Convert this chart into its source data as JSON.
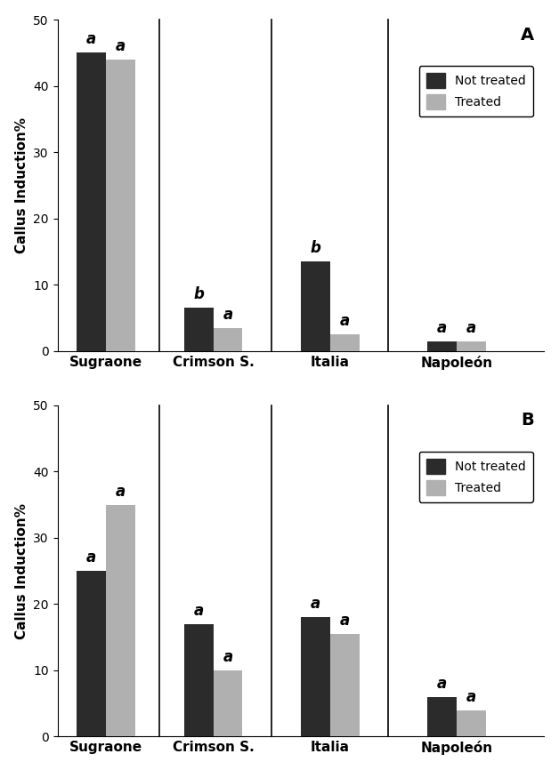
{
  "panel_A": {
    "label": "A",
    "categories": [
      "Sugraone",
      "Crimson S.",
      "Italia",
      "Napoleón"
    ],
    "not_treated": [
      45,
      6.5,
      13.5,
      1.5
    ],
    "treated": [
      44,
      3.5,
      2.5,
      1.5
    ],
    "nt_letters": [
      "a",
      "b",
      "b",
      "a"
    ],
    "t_letters": [
      "a",
      "a",
      "a",
      "a"
    ]
  },
  "panel_B": {
    "label": "B",
    "categories": [
      "Sugraone",
      "Crimson S.",
      "Italia",
      "Napoleón"
    ],
    "not_treated": [
      25,
      17,
      18,
      6
    ],
    "treated": [
      35,
      10,
      15.5,
      4
    ],
    "nt_letters": [
      "a",
      "a",
      "a",
      "a"
    ],
    "t_letters": [
      "a",
      "a",
      "a",
      "a"
    ]
  },
  "ylim": [
    0,
    50
  ],
  "yticks": [
    0,
    10,
    20,
    30,
    40,
    50
  ],
  "ylabel": "Callus Induction%",
  "bar_width": 0.6,
  "color_not_treated": "#2b2b2b",
  "color_treated": "#b0b0b0",
  "legend_labels": [
    "Not treated",
    "Treated"
  ],
  "background_color": "#ffffff"
}
